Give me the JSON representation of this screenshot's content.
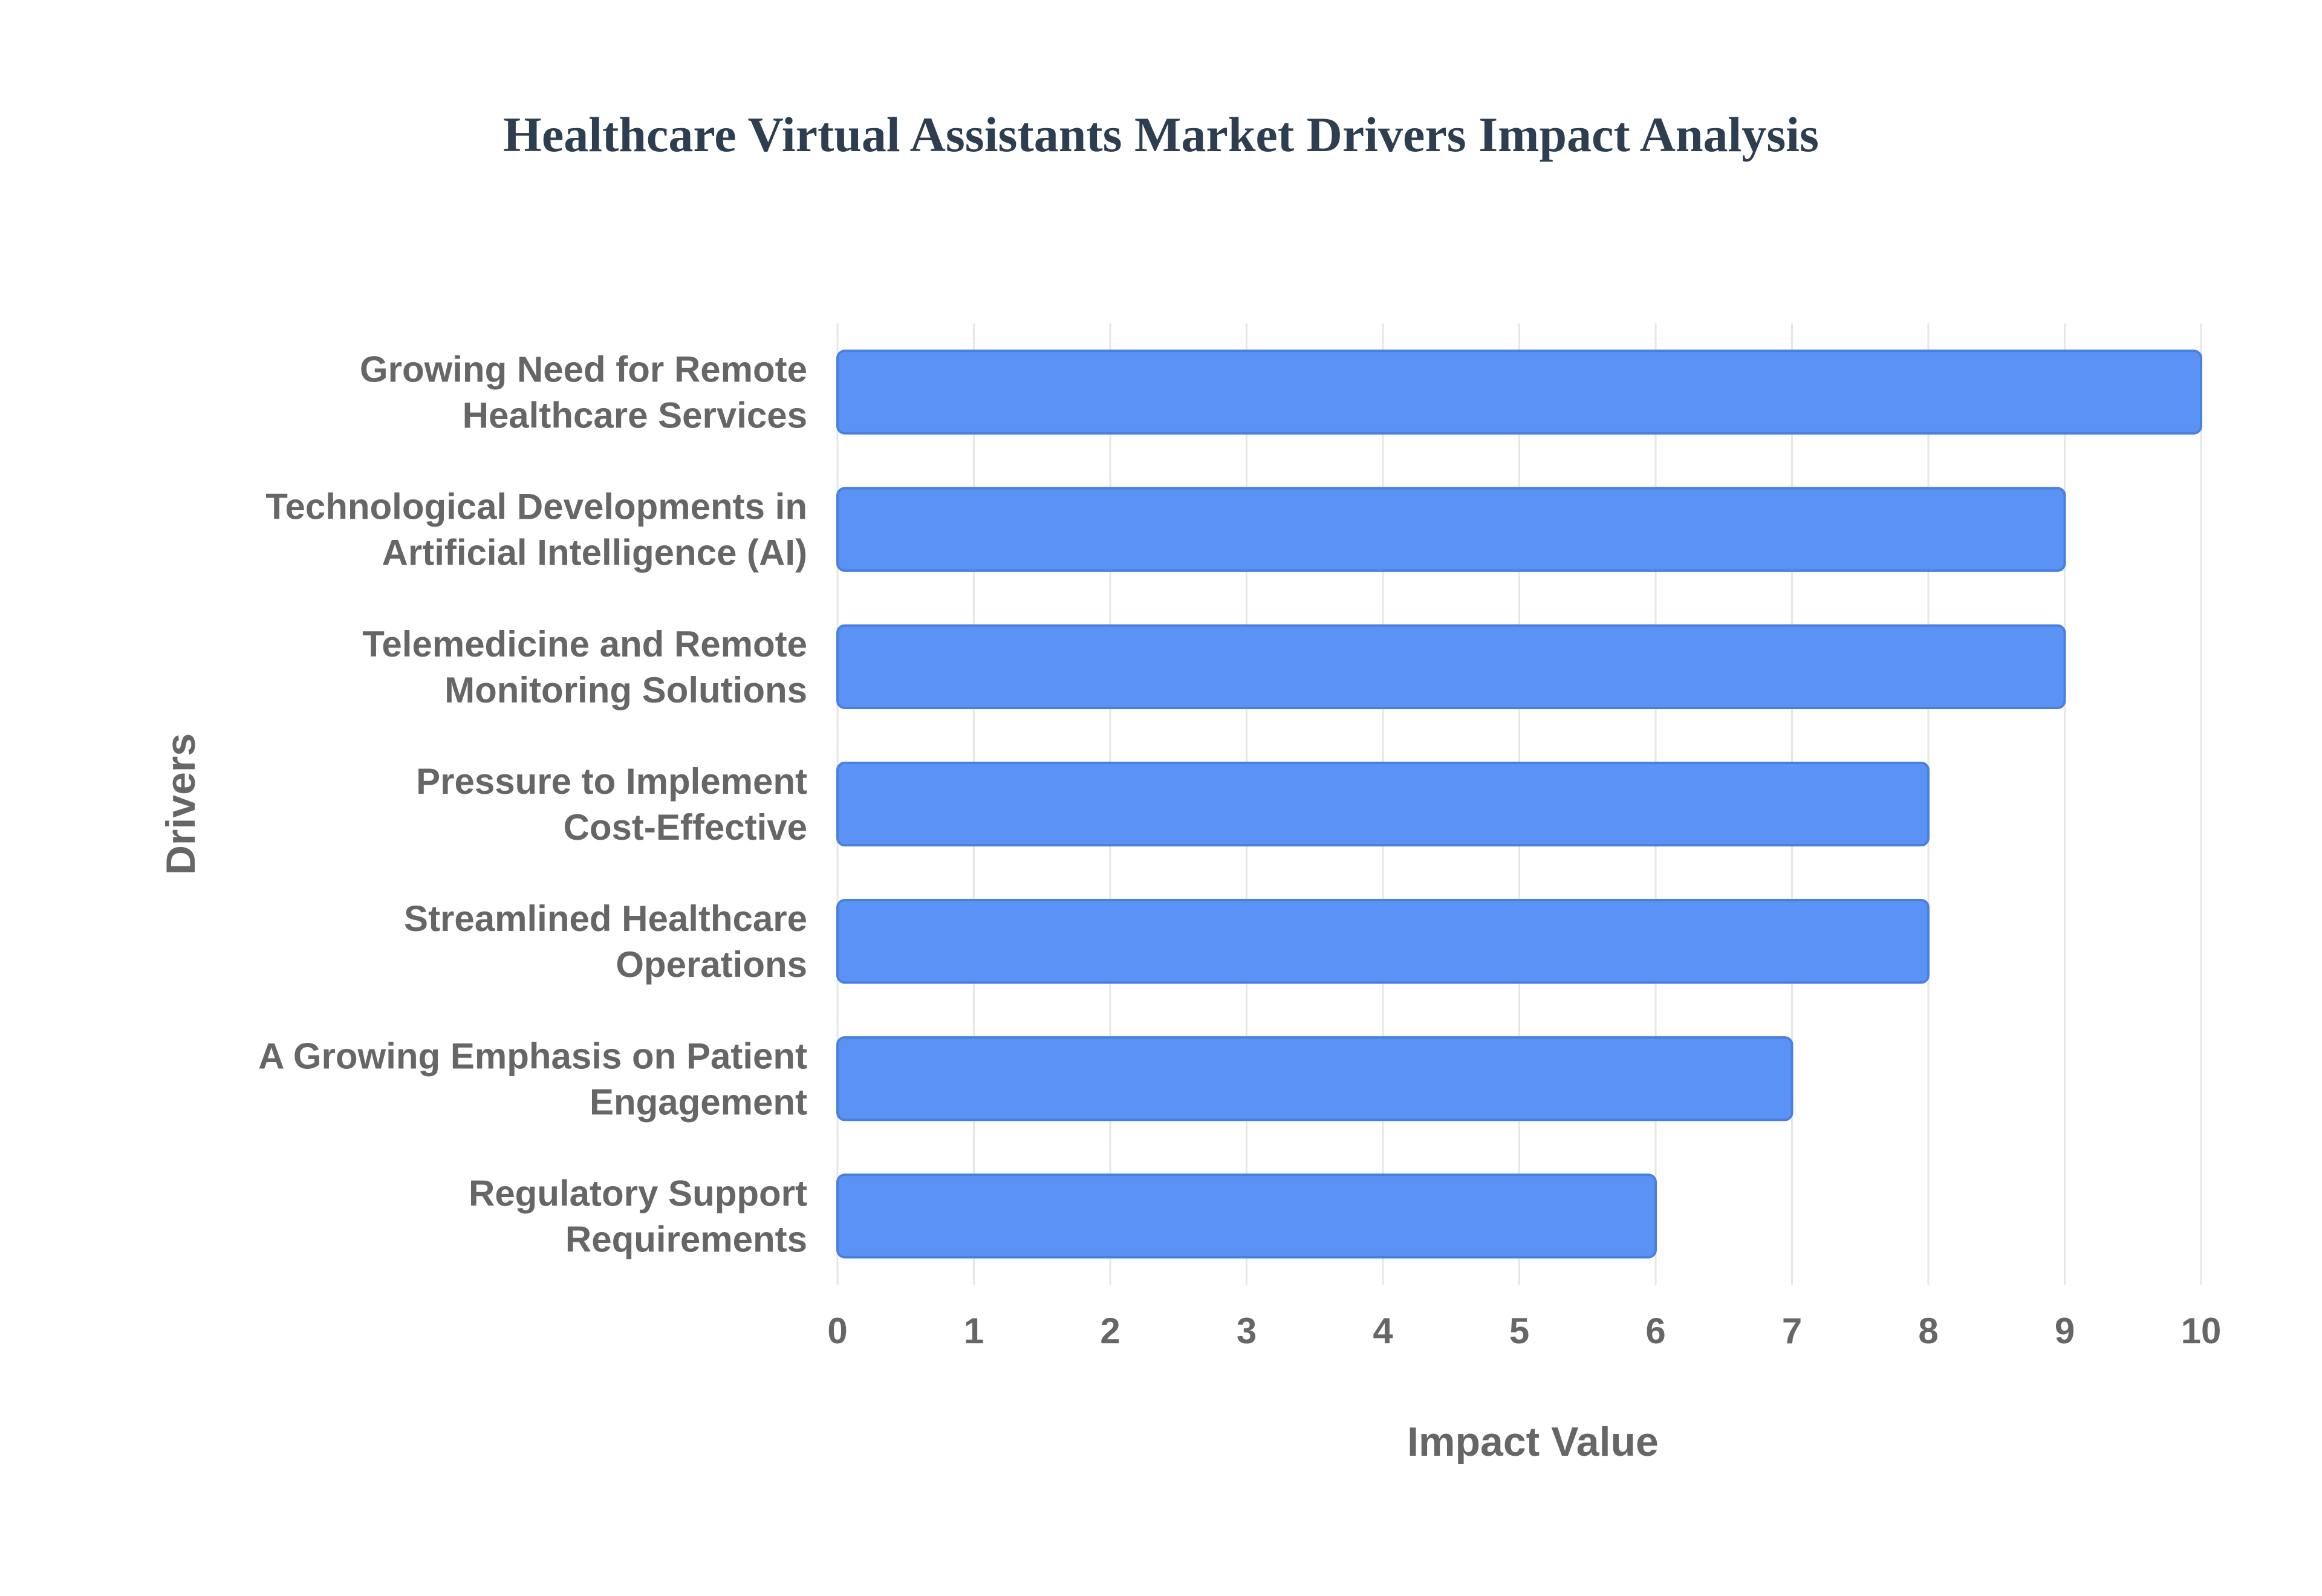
{
  "chart_data": {
    "type": "bar",
    "orientation": "horizontal",
    "title": "Healthcare Virtual Assistants Market Drivers Impact Analysis",
    "xlabel": "Impact Value",
    "ylabel": "Drivers",
    "xlim": [
      0,
      10
    ],
    "x_ticks": [
      "0",
      "1",
      "2",
      "3",
      "4",
      "5",
      "6",
      "7",
      "8",
      "9",
      "10"
    ],
    "grid": true,
    "categories": [
      [
        "Growing Need for Remote",
        "Healthcare Services"
      ],
      [
        "Technological Developments in",
        "Artificial Intelligence (AI)"
      ],
      [
        "Telemedicine and Remote",
        "Monitoring Solutions"
      ],
      [
        "Pressure to Implement",
        "Cost-Effective"
      ],
      [
        "Streamlined Healthcare",
        "Operations"
      ],
      [
        "A Growing Emphasis on Patient",
        "Engagement"
      ],
      [
        "Regulatory Support",
        "Requirements"
      ]
    ],
    "values": [
      10,
      9,
      9,
      8,
      8,
      7,
      6
    ],
    "bar_color": "#5b93f5",
    "bar_border_color": "#4a7fe0"
  }
}
